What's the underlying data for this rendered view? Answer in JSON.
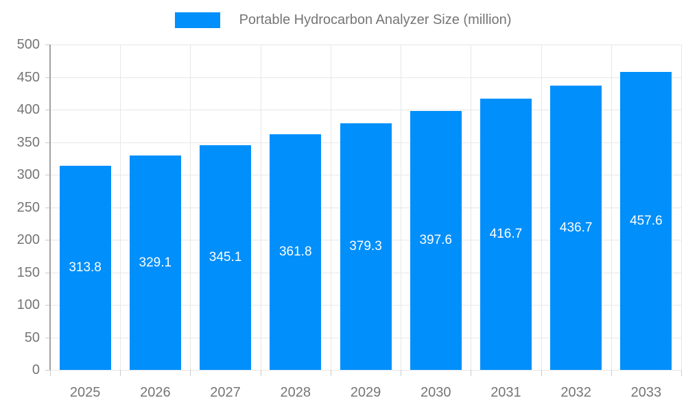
{
  "legend": {
    "series_label": "Portable Hydrocarbon Analyzer Size (million)"
  },
  "chart_data": {
    "type": "bar",
    "title": "Portable Hydrocarbon Analyzer Size (million)",
    "series_name": "Portable Hydrocarbon Analyzer Size (million)",
    "categories": [
      "2025",
      "2026",
      "2027",
      "2028",
      "2029",
      "2030",
      "2031",
      "2032",
      "2033"
    ],
    "values": [
      313.8,
      329.1,
      345.1,
      361.8,
      379.3,
      397.6,
      416.7,
      436.7,
      457.6
    ],
    "value_labels": [
      "313.8",
      "329.1",
      "345.1",
      "361.8",
      "379.3",
      "397.6",
      "416.7",
      "436.7",
      "457.6"
    ],
    "xlabel": "",
    "ylabel": "",
    "ylim": [
      0,
      500
    ],
    "ytick_step": 50,
    "ytick_labels": [
      "0",
      "50",
      "100",
      "150",
      "200",
      "250",
      "300",
      "350",
      "400",
      "450",
      "500"
    ],
    "grid": true,
    "legend_position": "top",
    "colors": {
      "bar": "#008FFB",
      "bar_value_text": "#ffffff",
      "axis_text": "#757575",
      "gridline": "#e7e7e7",
      "axis_line": "#a0a0a0",
      "tick": "#c9c9c9",
      "background": "#ffffff"
    }
  }
}
